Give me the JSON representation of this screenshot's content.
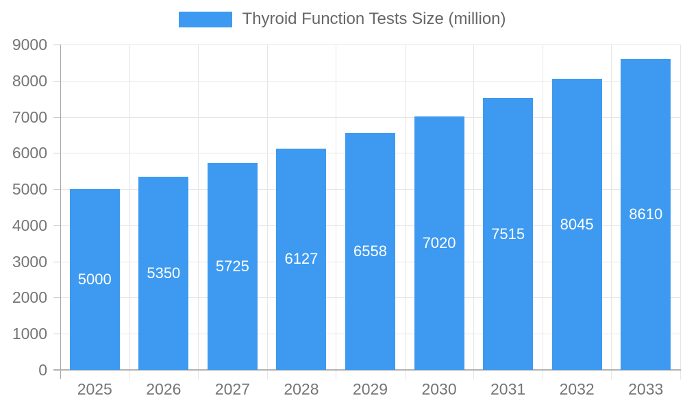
{
  "legend": {
    "items": [
      {
        "label": "Thyroid Function Tests Size (million)",
        "color": "#3d9af0"
      }
    ]
  },
  "chart_data": {
    "type": "bar",
    "title": "Thyroid Function Tests Size (million)",
    "categories": [
      "2025",
      "2026",
      "2027",
      "2028",
      "2029",
      "2030",
      "2031",
      "2032",
      "2033"
    ],
    "values": [
      5000,
      5350,
      5725,
      6127,
      6558,
      7020,
      7515,
      8045,
      8610
    ],
    "series": [
      {
        "name": "Thyroid Function Tests Size (million)",
        "values": [
          5000,
          5350,
          5725,
          6127,
          6558,
          7020,
          7515,
          8045,
          8610
        ]
      }
    ],
    "xlabel": "",
    "ylabel": "",
    "ylim": [
      0,
      9000
    ],
    "y_ticks": [
      0,
      1000,
      2000,
      3000,
      4000,
      5000,
      6000,
      7000,
      8000,
      9000
    ],
    "grid": true,
    "legend_position": "top",
    "value_labels_inside_bars": true,
    "colors": {
      "bar": "#3d9af0",
      "bar_value_text": "#ffffff",
      "axis_text": "#757575",
      "legend_text": "#666666",
      "gridline": "#e6e6e6",
      "axis_line": "#b3b3b3"
    }
  }
}
